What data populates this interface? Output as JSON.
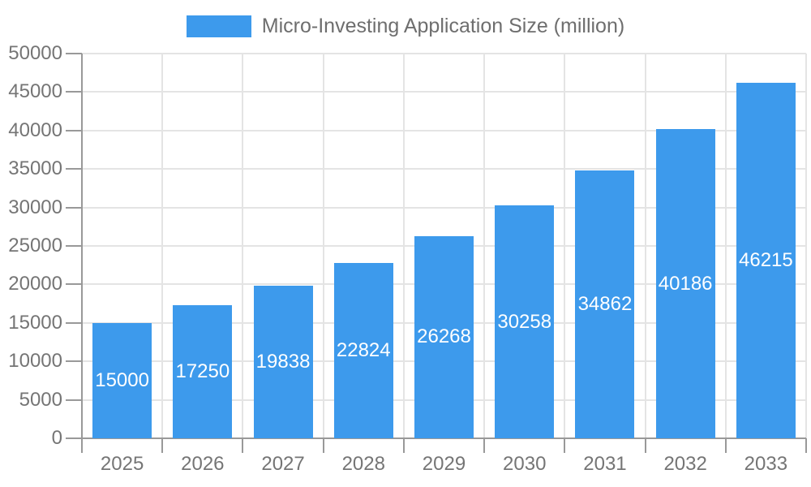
{
  "legend": {
    "label": "Micro-Investing Application Size (million)"
  },
  "chart_data": {
    "type": "bar",
    "title": "Micro-Investing Application Size (million)",
    "series_name": "Micro-Investing Application Size (million)",
    "categories": [
      "2025",
      "2026",
      "2027",
      "2028",
      "2029",
      "2030",
      "2031",
      "2032",
      "2033"
    ],
    "values": [
      15000,
      17250,
      19838,
      22824,
      26268,
      30258,
      34862,
      40186,
      46215
    ],
    "data_label_texts": [
      "15000",
      "17250",
      "19838",
      "22824",
      "26268",
      "30258",
      "34862",
      "40186",
      "46215"
    ],
    "y_tick_labels": [
      "0",
      "5000",
      "10000",
      "15000",
      "20000",
      "25000",
      "30000",
      "35000",
      "40000",
      "45000",
      "50000"
    ],
    "xlabel": "",
    "ylabel": "",
    "ylim": [
      0,
      50000
    ],
    "ytick_step": 5000,
    "grid": true,
    "legend_position": "top",
    "data_label_position": "inside-center",
    "colors": {
      "bar": "#3D9AEC",
      "bar_label_text": "#FFFFFF",
      "axis_text": "#757575",
      "title_text": "#6E6E6E",
      "grid_line": "#E4E4E4",
      "axis_line": "#999999"
    }
  }
}
